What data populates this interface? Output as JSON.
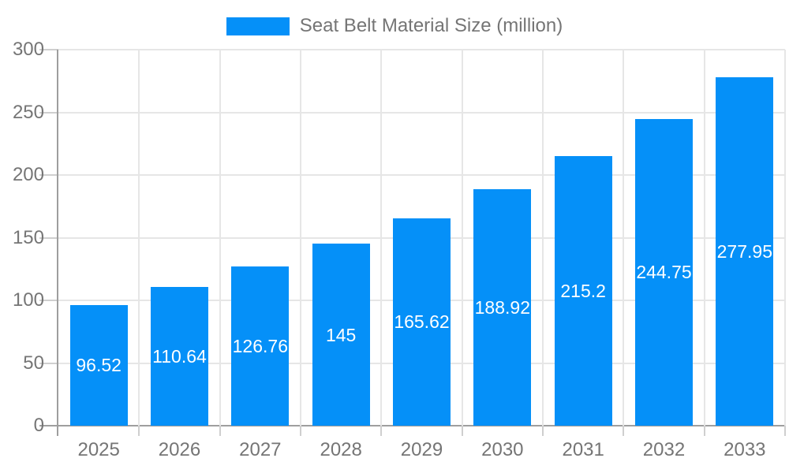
{
  "legend": {
    "label": "Seat Belt Material Size (million)"
  },
  "colors": {
    "bar": "#0590f8",
    "grid": "#e6e6e6",
    "axis": "#9e9e9e",
    "tick": "#cfcfcf",
    "axis_text": "#757575",
    "value_text": "#ffffff",
    "background": "#ffffff"
  },
  "chart_data": {
    "type": "bar",
    "title": "Seat Belt Material Size (million)",
    "categories": [
      "2025",
      "2026",
      "2027",
      "2028",
      "2029",
      "2030",
      "2031",
      "2032",
      "2033"
    ],
    "series": [
      {
        "name": "Seat Belt Material Size (million)",
        "values": [
          96.52,
          110.64,
          126.76,
          145,
          165.62,
          188.92,
          215.2,
          244.75,
          277.95
        ]
      }
    ],
    "value_labels": [
      "96.52",
      "110.64",
      "126.76",
      "145",
      "165.62",
      "188.92",
      "215.2",
      "244.75",
      "277.95"
    ],
    "xlabel": "",
    "ylabel": "",
    "ylim": [
      0,
      300
    ],
    "yticks": [
      0,
      50,
      100,
      150,
      200,
      250,
      300
    ],
    "grid": true,
    "legend_position": "top-center"
  }
}
